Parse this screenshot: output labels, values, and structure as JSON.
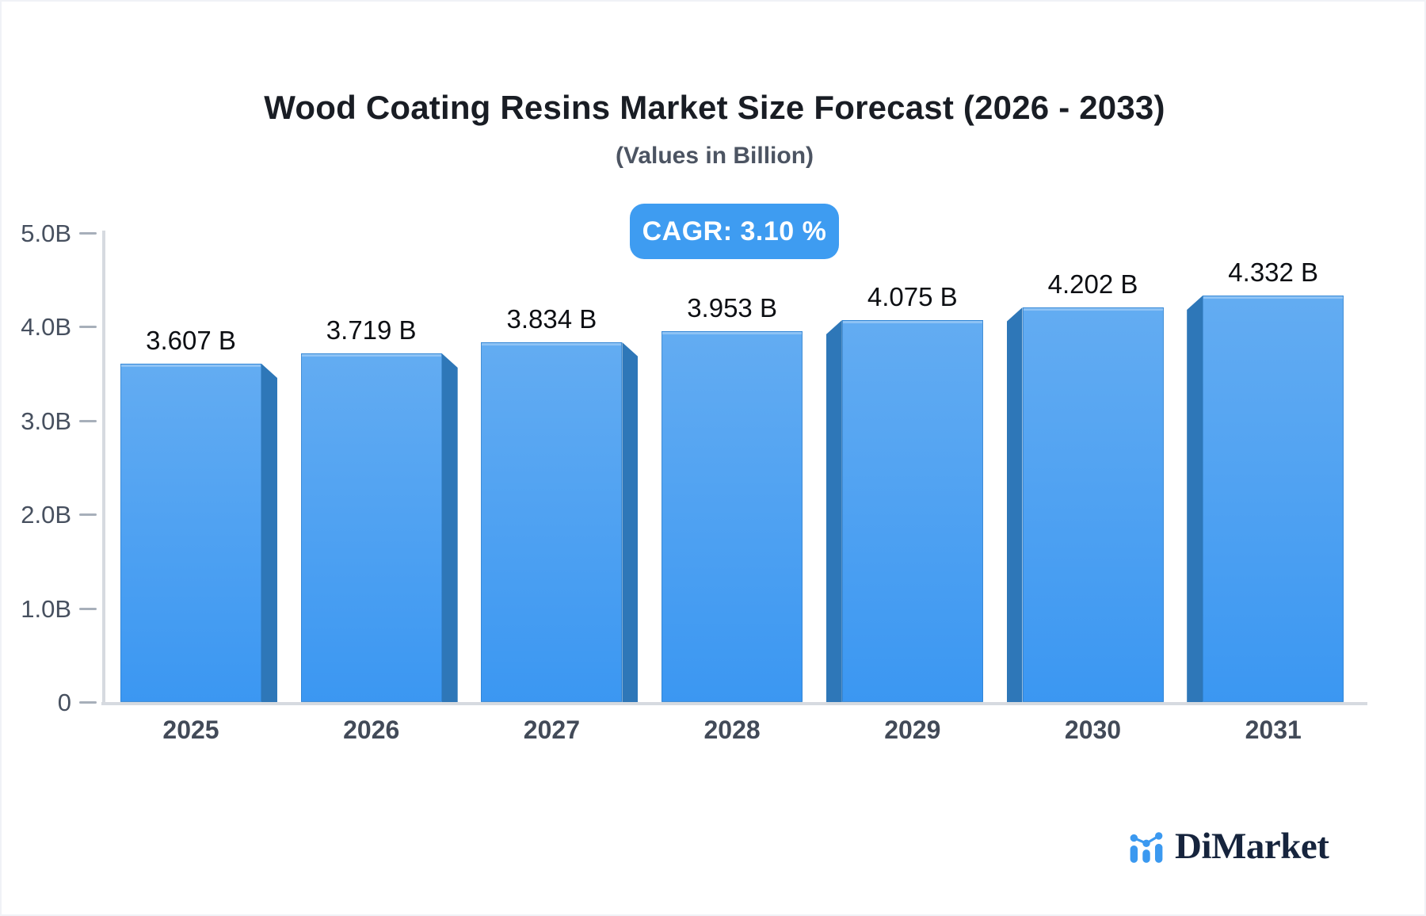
{
  "chart_data": {
    "type": "bar",
    "title": "Wood Coating Resins Market Size Forecast (2026 - 2033)",
    "subtitle": "(Values in Billion)",
    "cagr_badge": "CAGR: 3.10 %",
    "categories": [
      "2025",
      "2026",
      "2027",
      "2028",
      "2029",
      "2030",
      "2031"
    ],
    "values": [
      3.607,
      3.719,
      3.834,
      3.953,
      4.075,
      4.202,
      4.332
    ],
    "value_labels": [
      "3.607 B",
      "3.719 B",
      "3.834 B",
      "3.953 B",
      "4.075 B",
      "4.202 B",
      "4.332 B"
    ],
    "xlabel": "",
    "ylabel": "",
    "ylim": [
      0,
      5
    ],
    "grid": "off",
    "legend": "none",
    "y_ticks": [
      {
        "label": "5.0B",
        "value": 5.0
      },
      {
        "label": "4.0B",
        "value": 4.0
      },
      {
        "label": "3.0B",
        "value": 3.0
      },
      {
        "label": "2.0B",
        "value": 2.0
      },
      {
        "label": "1.0B",
        "value": 1.0
      },
      {
        "label": "0",
        "value": 0.0
      }
    ],
    "colors": {
      "bar_face_top": "#63acf2",
      "bar_face_bottom": "#3b97f2",
      "bar_side": "#2e77b8",
      "badge_background": "#3e9cf1",
      "badge_text": "#ffffff",
      "axis": "#d6dae0",
      "tick_text": "#47505f",
      "category_text": "#424a58",
      "value_text": "#0d0f13"
    }
  },
  "branding": {
    "name": "DiMarket",
    "logo_icon": "bar-chart-trend-icon",
    "accent": "#3b99f0",
    "text_color": "#16243d"
  }
}
